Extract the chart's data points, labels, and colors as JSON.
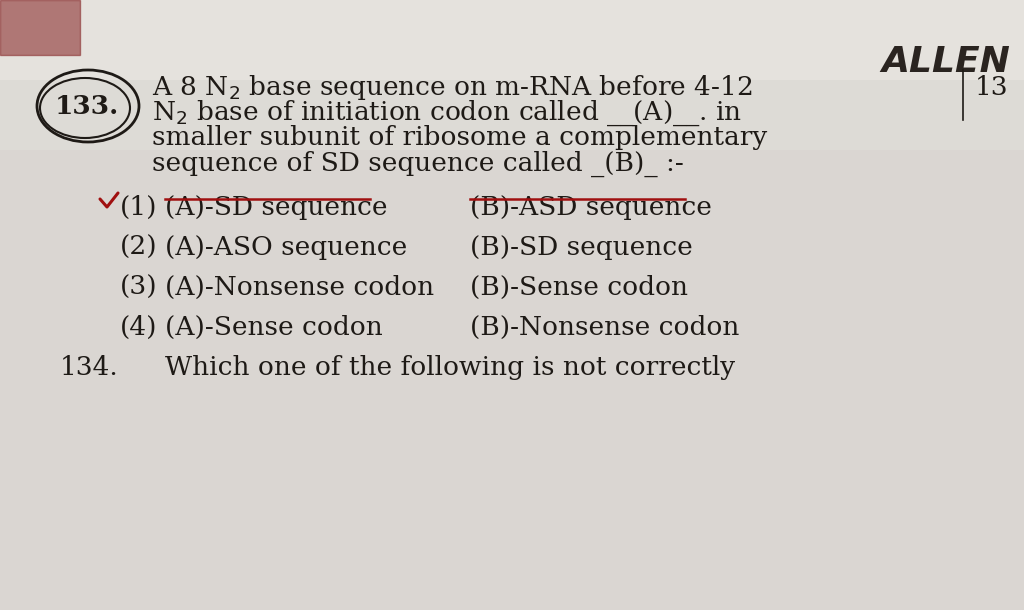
{
  "background_color": "#dedad4",
  "bg_top_color": "#ccc8c0",
  "allen_text": "ALLEN",
  "allen_color": "#2a2420",
  "allen_fontsize": 26,
  "question_number": "133.",
  "line1": "A 8 N$_2$ base sequence on m-RNA before 4-12",
  "line2": "N$_2$ base of initiation codon called __(A)__. in",
  "line3": "smaller subunit of ribosome a complementary",
  "line4": "sequence of SD sequence called _(B)_ :-",
  "options": [
    {
      "num": "(1)",
      "text_a": "(A)-SD sequence",
      "text_b": "(B)-ASD sequence",
      "underline_a": true,
      "underline_b": true,
      "correct": true
    },
    {
      "num": "(2)",
      "text_a": "(A)-ASO sequence",
      "text_b": "(B)-SD sequence",
      "underline_a": false,
      "underline_b": false,
      "correct": false
    },
    {
      "num": "(3)",
      "text_a": "(A)-Nonsense codon",
      "text_b": "(B)-Sense codon",
      "underline_a": false,
      "underline_b": false,
      "correct": false
    },
    {
      "num": "(4)",
      "text_a": "(A)-Sense codon",
      "text_b": "(B)-Nonsense codon",
      "underline_a": false,
      "underline_b": false,
      "correct": false
    }
  ],
  "bottom_text": "Which one of the following is not correctly",
  "right_number": "13",
  "text_color": "#1e1a16",
  "main_fontsize": 19,
  "option_fontsize": 19,
  "circle_color": "#1e1a16",
  "underline_color": "#a01010",
  "tick_color": "#a01010"
}
